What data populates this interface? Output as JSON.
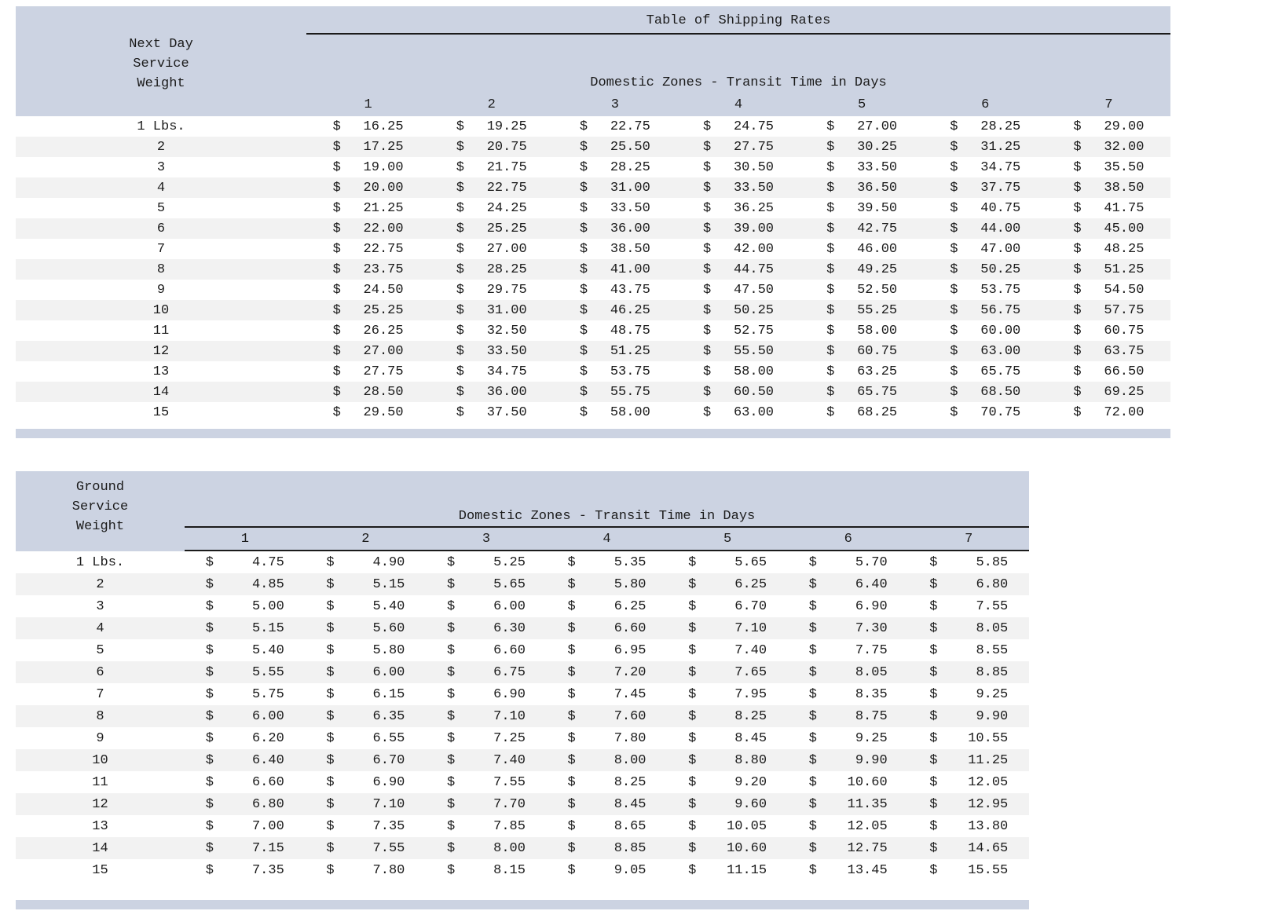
{
  "document_title": "Table of Shipping Rates",
  "zones_heading": "Domestic Zones - Transit Time in Days",
  "currency_symbol": "$",
  "colors": {
    "band": "#ccd3e2",
    "stripe": "#f2f2f2"
  },
  "tables": [
    {
      "id": "next-day-service",
      "service_label_lines": [
        "Next Day",
        "Service",
        "Weight"
      ],
      "zone_columns": [
        "1",
        "2",
        "3",
        "4",
        "5",
        "6",
        "7"
      ],
      "rows": [
        {
          "weight": "1 Lbs.",
          "rates": [
            "16.25",
            "19.25",
            "22.75",
            "24.75",
            "27.00",
            "28.25",
            "29.00"
          ]
        },
        {
          "weight": "2",
          "rates": [
            "17.25",
            "20.75",
            "25.50",
            "27.75",
            "30.25",
            "31.25",
            "32.00"
          ]
        },
        {
          "weight": "3",
          "rates": [
            "19.00",
            "21.75",
            "28.25",
            "30.50",
            "33.50",
            "34.75",
            "35.50"
          ]
        },
        {
          "weight": "4",
          "rates": [
            "20.00",
            "22.75",
            "31.00",
            "33.50",
            "36.50",
            "37.75",
            "38.50"
          ]
        },
        {
          "weight": "5",
          "rates": [
            "21.25",
            "24.25",
            "33.50",
            "36.25",
            "39.50",
            "40.75",
            "41.75"
          ]
        },
        {
          "weight": "6",
          "rates": [
            "22.00",
            "25.25",
            "36.00",
            "39.00",
            "42.75",
            "44.00",
            "45.00"
          ]
        },
        {
          "weight": "7",
          "rates": [
            "22.75",
            "27.00",
            "38.50",
            "42.00",
            "46.00",
            "47.00",
            "48.25"
          ]
        },
        {
          "weight": "8",
          "rates": [
            "23.75",
            "28.25",
            "41.00",
            "44.75",
            "49.25",
            "50.25",
            "51.25"
          ]
        },
        {
          "weight": "9",
          "rates": [
            "24.50",
            "29.75",
            "43.75",
            "47.50",
            "52.50",
            "53.75",
            "54.50"
          ]
        },
        {
          "weight": "10",
          "rates": [
            "25.25",
            "31.00",
            "46.25",
            "50.25",
            "55.25",
            "56.75",
            "57.75"
          ]
        },
        {
          "weight": "11",
          "rates": [
            "26.25",
            "32.50",
            "48.75",
            "52.75",
            "58.00",
            "60.00",
            "60.75"
          ]
        },
        {
          "weight": "12",
          "rates": [
            "27.00",
            "33.50",
            "51.25",
            "55.50",
            "60.75",
            "63.00",
            "63.75"
          ]
        },
        {
          "weight": "13",
          "rates": [
            "27.75",
            "34.75",
            "53.75",
            "58.00",
            "63.25",
            "65.75",
            "66.50"
          ]
        },
        {
          "weight": "14",
          "rates": [
            "28.50",
            "36.00",
            "55.75",
            "60.50",
            "65.75",
            "68.50",
            "69.25"
          ]
        },
        {
          "weight": "15",
          "rates": [
            "29.50",
            "37.50",
            "58.00",
            "63.00",
            "68.25",
            "70.75",
            "72.00"
          ]
        }
      ]
    },
    {
      "id": "ground-service",
      "service_label_lines": [
        "Ground",
        "Service",
        "Weight"
      ],
      "zone_columns": [
        "1",
        "2",
        "3",
        "4",
        "5",
        "6",
        "7"
      ],
      "rows": [
        {
          "weight": "1 Lbs.",
          "rates": [
            "4.75",
            "4.90",
            "5.25",
            "5.35",
            "5.65",
            "5.70",
            "5.85"
          ]
        },
        {
          "weight": "2",
          "rates": [
            "4.85",
            "5.15",
            "5.65",
            "5.80",
            "6.25",
            "6.40",
            "6.80"
          ]
        },
        {
          "weight": "3",
          "rates": [
            "5.00",
            "5.40",
            "6.00",
            "6.25",
            "6.70",
            "6.90",
            "7.55"
          ]
        },
        {
          "weight": "4",
          "rates": [
            "5.15",
            "5.60",
            "6.30",
            "6.60",
            "7.10",
            "7.30",
            "8.05"
          ]
        },
        {
          "weight": "5",
          "rates": [
            "5.40",
            "5.80",
            "6.60",
            "6.95",
            "7.40",
            "7.75",
            "8.55"
          ]
        },
        {
          "weight": "6",
          "rates": [
            "5.55",
            "6.00",
            "6.75",
            "7.20",
            "7.65",
            "8.05",
            "8.85"
          ]
        },
        {
          "weight": "7",
          "rates": [
            "5.75",
            "6.15",
            "6.90",
            "7.45",
            "7.95",
            "8.35",
            "9.25"
          ]
        },
        {
          "weight": "8",
          "rates": [
            "6.00",
            "6.35",
            "7.10",
            "7.60",
            "8.25",
            "8.75",
            "9.90"
          ]
        },
        {
          "weight": "9",
          "rates": [
            "6.20",
            "6.55",
            "7.25",
            "7.80",
            "8.45",
            "9.25",
            "10.55"
          ]
        },
        {
          "weight": "10",
          "rates": [
            "6.40",
            "6.70",
            "7.40",
            "8.00",
            "8.80",
            "9.90",
            "11.25"
          ]
        },
        {
          "weight": "11",
          "rates": [
            "6.60",
            "6.90",
            "7.55",
            "8.25",
            "9.20",
            "10.60",
            "12.05"
          ]
        },
        {
          "weight": "12",
          "rates": [
            "6.80",
            "7.10",
            "7.70",
            "8.45",
            "9.60",
            "11.35",
            "12.95"
          ]
        },
        {
          "weight": "13",
          "rates": [
            "7.00",
            "7.35",
            "7.85",
            "8.65",
            "10.05",
            "12.05",
            "13.80"
          ]
        },
        {
          "weight": "14",
          "rates": [
            "7.15",
            "7.55",
            "8.00",
            "8.85",
            "10.60",
            "12.75",
            "14.65"
          ]
        },
        {
          "weight": "15",
          "rates": [
            "7.35",
            "7.80",
            "8.15",
            "9.05",
            "11.15",
            "13.45",
            "15.55"
          ]
        }
      ]
    }
  ]
}
